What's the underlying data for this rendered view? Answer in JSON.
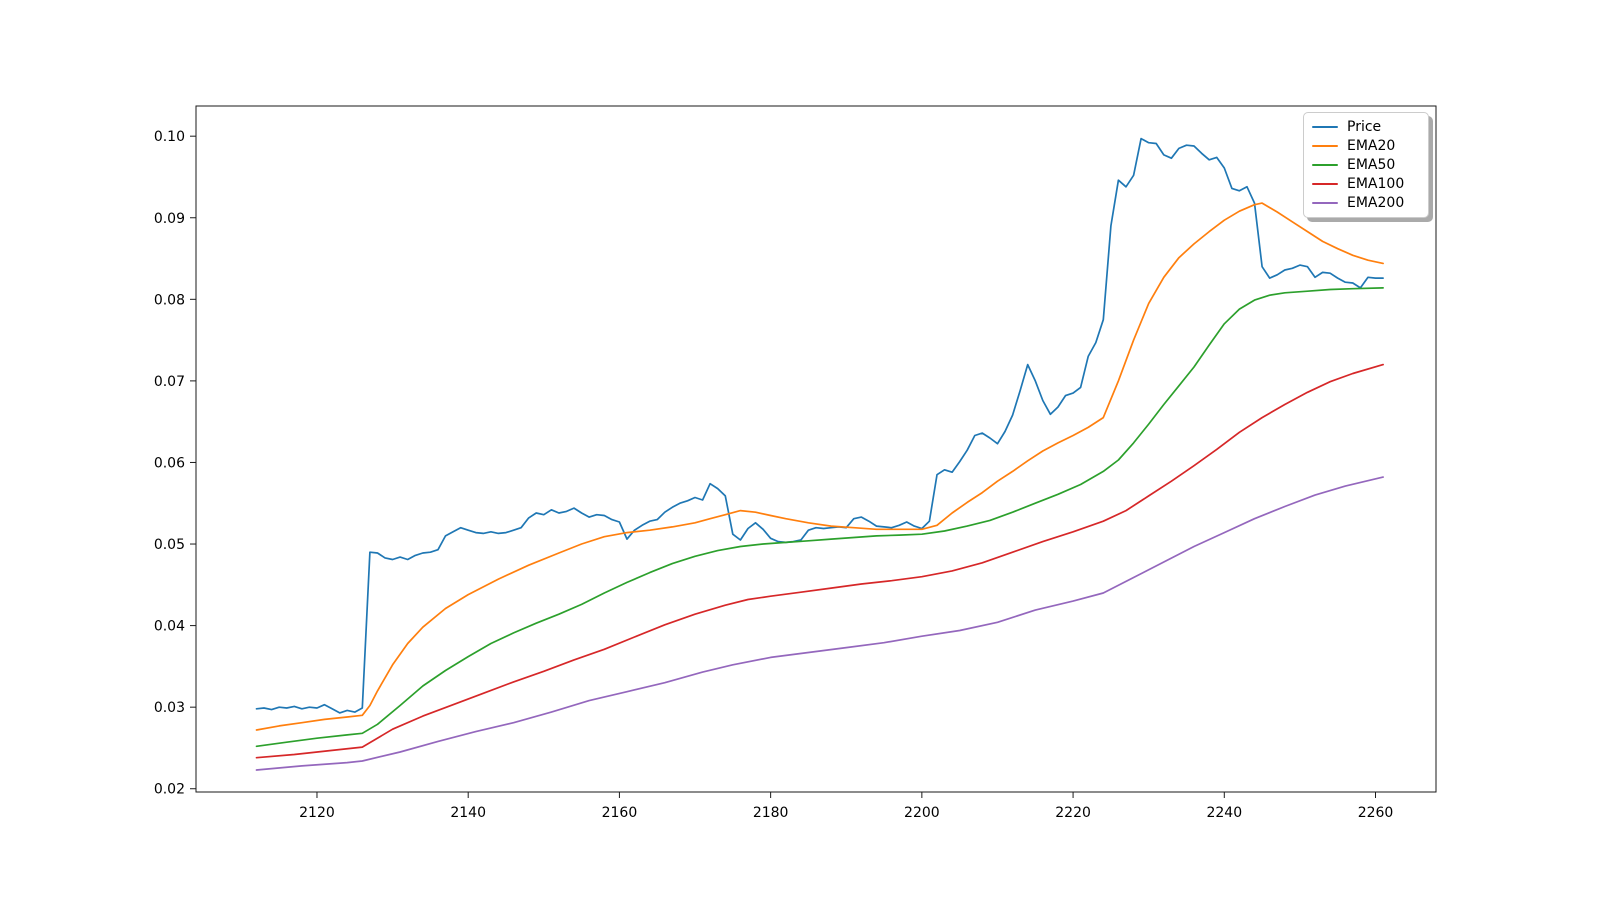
{
  "figure": {
    "background": "#ffffff"
  },
  "chart_data": {
    "type": "line",
    "title": "",
    "xlabel": "",
    "ylabel": "",
    "grid": false,
    "legend_position": "upper right",
    "xlim": [
      2104,
      2268
    ],
    "ylim": [
      0.0196,
      0.1037
    ],
    "xticks": [
      2120,
      2140,
      2160,
      2180,
      2200,
      2220,
      2240,
      2260
    ],
    "xtick_labels": [
      "2120",
      "2140",
      "2160",
      "2180",
      "2200",
      "2220",
      "2240",
      "2260"
    ],
    "yticks": [
      0.02,
      0.03,
      0.04,
      0.05,
      0.06,
      0.07,
      0.08,
      0.09,
      0.1
    ],
    "ytick_labels": [
      "0.02",
      "0.03",
      "0.04",
      "0.05",
      "0.06",
      "0.07",
      "0.08",
      "0.09",
      "0.10"
    ],
    "series": [
      {
        "name": "Price",
        "color": "#1f77b4",
        "x_start": 2112,
        "x_step": 1,
        "y": [
          0.0298,
          0.0299,
          0.0297,
          0.03,
          0.0299,
          0.0301,
          0.0298,
          0.03,
          0.0299,
          0.0303,
          0.0298,
          0.0293,
          0.0296,
          0.0294,
          0.0299,
          0.049,
          0.0489,
          0.0483,
          0.0481,
          0.0484,
          0.0481,
          0.0486,
          0.0489,
          0.049,
          0.0493,
          0.051,
          0.0515,
          0.052,
          0.0517,
          0.0514,
          0.0513,
          0.0515,
          0.0513,
          0.0514,
          0.0517,
          0.052,
          0.0532,
          0.0538,
          0.0536,
          0.0542,
          0.0538,
          0.054,
          0.0544,
          0.0538,
          0.0533,
          0.0536,
          0.0535,
          0.053,
          0.0527,
          0.0506,
          0.0517,
          0.0523,
          0.0528,
          0.053,
          0.0539,
          0.0545,
          0.055,
          0.0553,
          0.0557,
          0.0554,
          0.0574,
          0.0568,
          0.0559,
          0.0512,
          0.0505,
          0.0519,
          0.0526,
          0.0518,
          0.0507,
          0.0503,
          0.0502,
          0.0503,
          0.0505,
          0.0517,
          0.052,
          0.0519,
          0.052,
          0.0521,
          0.052,
          0.0531,
          0.0533,
          0.0528,
          0.0522,
          0.0521,
          0.052,
          0.0523,
          0.0527,
          0.0522,
          0.0519,
          0.0528,
          0.0585,
          0.0591,
          0.0588,
          0.0601,
          0.0615,
          0.0633,
          0.0636,
          0.063,
          0.0623,
          0.0638,
          0.0658,
          0.0688,
          0.072,
          0.07,
          0.0676,
          0.0659,
          0.0668,
          0.0682,
          0.0685,
          0.0692,
          0.073,
          0.0747,
          0.0775,
          0.089,
          0.0946,
          0.0938,
          0.0952,
          0.0997,
          0.0992,
          0.0991,
          0.0977,
          0.0973,
          0.0985,
          0.0989,
          0.0988,
          0.0979,
          0.0971,
          0.0974,
          0.0961,
          0.0936,
          0.0933,
          0.0938,
          0.0918,
          0.084,
          0.0826,
          0.083,
          0.0836,
          0.0838,
          0.0842,
          0.084,
          0.0827,
          0.0833,
          0.0832,
          0.0826,
          0.0821,
          0.082,
          0.0814,
          0.0827,
          0.0826,
          0.0826
        ]
      },
      {
        "name": "EMA20",
        "color": "#ff7f0e",
        "x": [
          2112,
          2115,
          2118,
          2121,
          2124,
          2126,
          2127,
          2128,
          2130,
          2132,
          2134,
          2137,
          2140,
          2144,
          2148,
          2152,
          2155,
          2158,
          2161,
          2164,
          2167,
          2170,
          2172,
          2174,
          2176,
          2178,
          2180,
          2182,
          2185,
          2188,
          2191,
          2194,
          2197,
          2200,
          2202,
          2204,
          2206,
          2208,
          2210,
          2212,
          2214,
          2216,
          2218,
          2220,
          2222,
          2224,
          2226,
          2228,
          2230,
          2232,
          2234,
          2236,
          2238,
          2240,
          2242,
          2244,
          2245,
          2247,
          2249,
          2251,
          2253,
          2255,
          2257,
          2259,
          2261
        ],
        "y": [
          0.0272,
          0.0277,
          0.0281,
          0.0285,
          0.0288,
          0.029,
          0.0302,
          0.032,
          0.0352,
          0.0378,
          0.0398,
          0.0421,
          0.0438,
          0.0457,
          0.0474,
          0.0489,
          0.05,
          0.0509,
          0.0514,
          0.0517,
          0.0521,
          0.0526,
          0.0531,
          0.0536,
          0.0541,
          0.0539,
          0.0535,
          0.0531,
          0.0526,
          0.0522,
          0.052,
          0.0518,
          0.0518,
          0.0518,
          0.0523,
          0.0538,
          0.0551,
          0.0563,
          0.0577,
          0.0589,
          0.0602,
          0.0614,
          0.0624,
          0.0633,
          0.0643,
          0.0655,
          0.07,
          0.075,
          0.0795,
          0.0827,
          0.0851,
          0.0868,
          0.0883,
          0.0897,
          0.0908,
          0.0916,
          0.0918,
          0.0907,
          0.0895,
          0.0883,
          0.0871,
          0.0862,
          0.0854,
          0.0848,
          0.0844
        ]
      },
      {
        "name": "EMA50",
        "color": "#2ca02c",
        "x": [
          2112,
          2116,
          2120,
          2124,
          2126,
          2128,
          2131,
          2134,
          2137,
          2140,
          2143,
          2146,
          2149,
          2152,
          2155,
          2158,
          2161,
          2164,
          2167,
          2170,
          2173,
          2176,
          2179,
          2182,
          2185,
          2188,
          2191,
          2194,
          2197,
          2200,
          2203,
          2206,
          2209,
          2212,
          2215,
          2218,
          2221,
          2224,
          2226,
          2228,
          2230,
          2232,
          2234,
          2236,
          2238,
          2240,
          2242,
          2244,
          2246,
          2248,
          2251,
          2254,
          2257,
          2261
        ],
        "y": [
          0.0252,
          0.0257,
          0.0262,
          0.0266,
          0.0268,
          0.0279,
          0.0302,
          0.0326,
          0.0345,
          0.0362,
          0.0378,
          0.0391,
          0.0403,
          0.0414,
          0.0426,
          0.044,
          0.0453,
          0.0465,
          0.0476,
          0.0485,
          0.0492,
          0.0497,
          0.05,
          0.0502,
          0.0504,
          0.0506,
          0.0508,
          0.051,
          0.0511,
          0.0512,
          0.0516,
          0.0522,
          0.0529,
          0.0539,
          0.055,
          0.0561,
          0.0573,
          0.0589,
          0.0603,
          0.0624,
          0.0647,
          0.0671,
          0.0694,
          0.0717,
          0.0744,
          0.077,
          0.0788,
          0.0799,
          0.0805,
          0.0808,
          0.081,
          0.0812,
          0.0813,
          0.0814
        ]
      },
      {
        "name": "EMA100",
        "color": "#d62728",
        "x": [
          2112,
          2117,
          2122,
          2126,
          2130,
          2134,
          2138,
          2142,
          2146,
          2150,
          2154,
          2158,
          2162,
          2166,
          2170,
          2174,
          2177,
          2180,
          2184,
          2188,
          2192,
          2196,
          2200,
          2204,
          2208,
          2212,
          2216,
          2220,
          2224,
          2227,
          2230,
          2233,
          2236,
          2239,
          2242,
          2245,
          2248,
          2251,
          2254,
          2257,
          2261
        ],
        "y": [
          0.0238,
          0.0242,
          0.0247,
          0.0251,
          0.0273,
          0.0289,
          0.0303,
          0.0317,
          0.0331,
          0.0344,
          0.0358,
          0.0371,
          0.0386,
          0.0401,
          0.0414,
          0.0425,
          0.0432,
          0.0436,
          0.0441,
          0.0446,
          0.0451,
          0.0455,
          0.046,
          0.0467,
          0.0477,
          0.049,
          0.0503,
          0.0515,
          0.0528,
          0.0541,
          0.0559,
          0.0577,
          0.0596,
          0.0616,
          0.0637,
          0.0655,
          0.0671,
          0.0686,
          0.0699,
          0.0709,
          0.072
        ]
      },
      {
        "name": "EMA200",
        "color": "#9467bd",
        "x": [
          2112,
          2118,
          2124,
          2126,
          2131,
          2136,
          2141,
          2146,
          2151,
          2156,
          2161,
          2166,
          2171,
          2175,
          2180,
          2185,
          2190,
          2195,
          2200,
          2205,
          2210,
          2215,
          2220,
          2224,
          2228,
          2232,
          2236,
          2240,
          2244,
          2248,
          2252,
          2256,
          2261
        ],
        "y": [
          0.0223,
          0.0228,
          0.0232,
          0.0234,
          0.0245,
          0.0258,
          0.027,
          0.0281,
          0.0294,
          0.0308,
          0.0319,
          0.033,
          0.0343,
          0.0352,
          0.0361,
          0.0367,
          0.0373,
          0.0379,
          0.0387,
          0.0394,
          0.0404,
          0.0419,
          0.043,
          0.044,
          0.0459,
          0.0478,
          0.0497,
          0.0514,
          0.0531,
          0.0546,
          0.056,
          0.0571,
          0.0582
        ]
      }
    ]
  }
}
